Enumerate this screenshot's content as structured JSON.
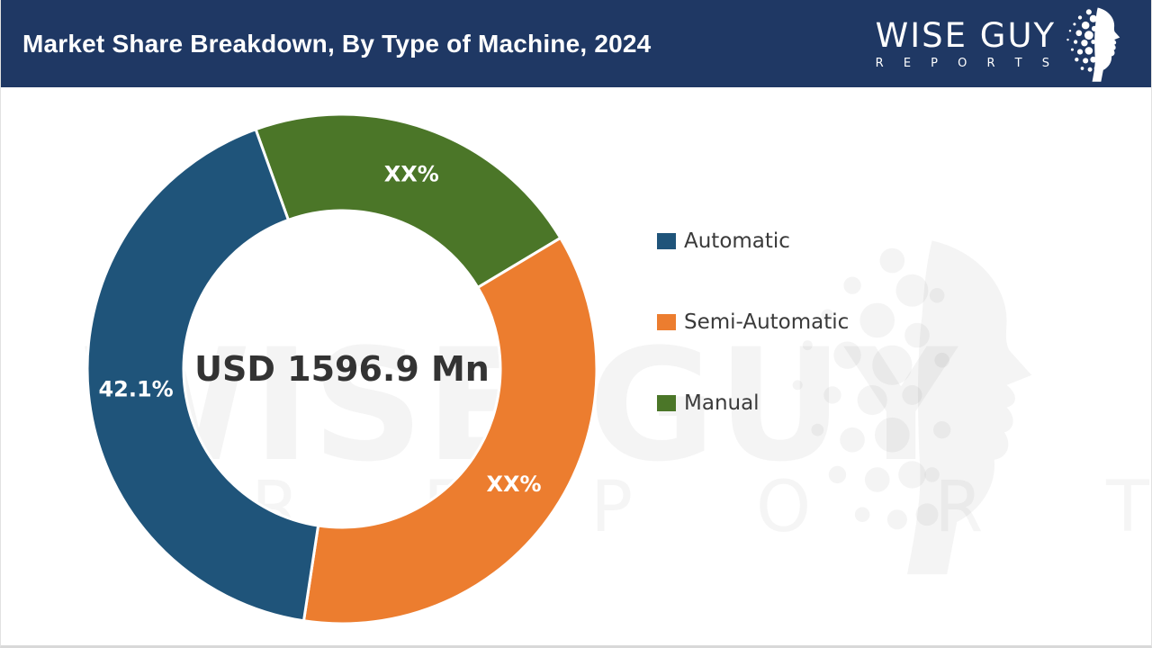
{
  "header": {
    "title": "Market Share Breakdown, By Type of Machine, 2024",
    "logo": {
      "name_line": "WISE GUY",
      "sub_line": "R E P O R T S"
    }
  },
  "chart_data": {
    "type": "pie",
    "subtype": "donut",
    "title": "Market Share Breakdown, By Type of Machine, 2024",
    "center_label": "USD 1596.9 Mn",
    "start_angle_deg_clockwise_from_top": -19.8,
    "segments": [
      {
        "name": "Manual",
        "label": "XX%",
        "value_pct": 21.9,
        "color": "#4B7628"
      },
      {
        "name": "Semi-Automatic",
        "label": "XX%",
        "value_pct": 36.0,
        "color": "#EC7D2F"
      },
      {
        "name": "Automatic",
        "label": "42.1%",
        "value_pct": 42.1,
        "color": "#1F547A"
      }
    ],
    "legend_position": "right"
  },
  "legend": {
    "items": [
      {
        "label": "Automatic",
        "color": "#1F547A"
      },
      {
        "label": "Semi-Automatic",
        "color": "#EC7D2F"
      },
      {
        "label": "Manual",
        "color": "#4B7628"
      }
    ]
  },
  "watermark": {
    "name_line": "WISE GUY",
    "sub_line": "R E P O R T S"
  },
  "colors": {
    "header_bg": "#1F3864",
    "center_text": "#333333",
    "legend_text": "#3A3A3A",
    "slice_separator": "#FFFFFF"
  }
}
